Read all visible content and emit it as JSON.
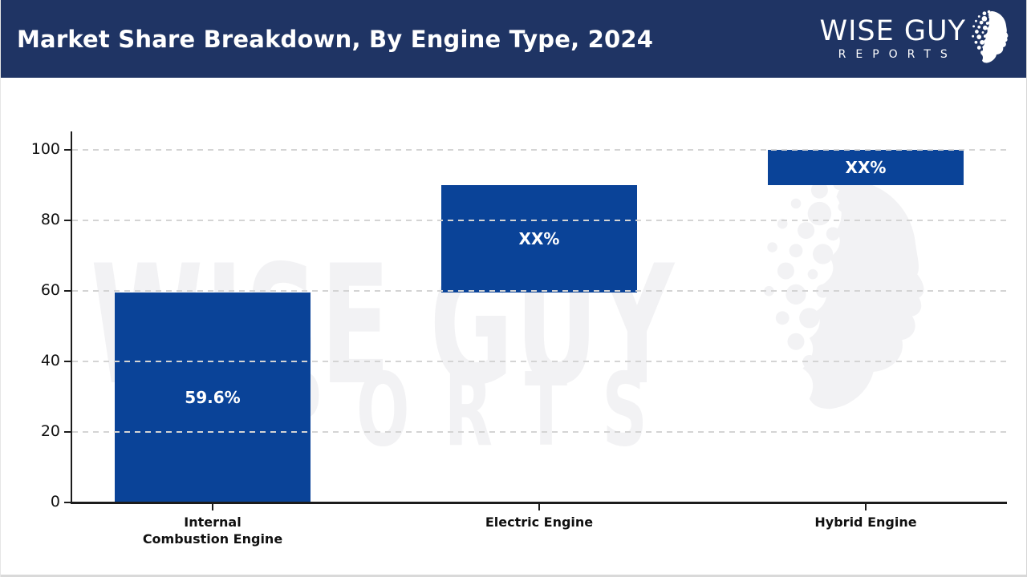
{
  "header": {
    "title": "Market Share Breakdown, By Engine Type, 2024",
    "logo": {
      "wordmark": "WISE GUY",
      "subtext": "REPORTS"
    }
  },
  "watermark": {
    "wordmark": "WISE GUY",
    "subtext": "REPORTS"
  },
  "chart_data": {
    "type": "bar",
    "subtype": "floating-segment-breakdown",
    "title": "Market Share Breakdown, By Engine Type, 2024",
    "categories": [
      "Internal Combustion Engine",
      "Electric Engine",
      "Hybrid Engine"
    ],
    "category_lines": [
      [
        "Internal",
        "Combustion Engine"
      ],
      [
        "Electric Engine"
      ],
      [
        "Hybrid Engine"
      ]
    ],
    "segments": [
      {
        "category": "Internal Combustion Engine",
        "start": 0,
        "end": 59.6,
        "label": "59.6%"
      },
      {
        "category": "Electric Engine",
        "start": 59.6,
        "end": 90,
        "label": "XX%"
      },
      {
        "category": "Hybrid Engine",
        "start": 90,
        "end": 100,
        "label": "XX%"
      }
    ],
    "ylim": [
      0,
      100
    ],
    "yticks": [
      0,
      20,
      40,
      60,
      80,
      100
    ],
    "grid": "horizontal-dashed",
    "legend": "none",
    "bar_color": "#0a4398",
    "bar_label_color": "#ffffff",
    "axis_color": "#1c1c1c",
    "grid_color": "#d4d4d4"
  },
  "colors": {
    "header_bg": "#1f3464",
    "watermark": "#f2f2f4",
    "background": "#ffffff"
  }
}
